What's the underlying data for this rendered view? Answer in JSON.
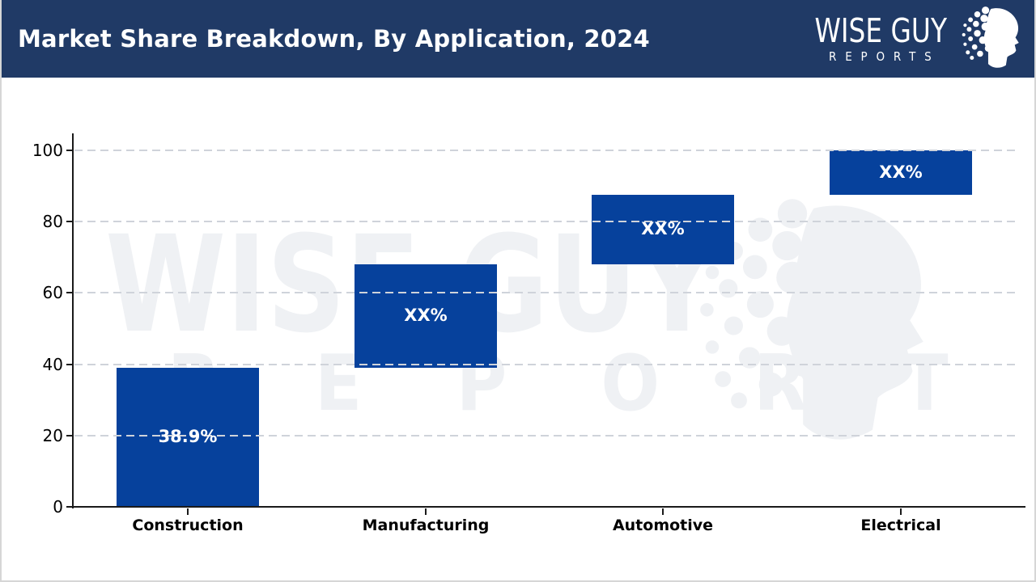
{
  "header": {
    "title": "Market Share Breakdown, By Application, 2024",
    "logo": {
      "name": "WISE GUY",
      "sub": "REPORTS",
      "head_icon": "dotted-face-profile"
    }
  },
  "watermark": {
    "big_text": "WISE GUY",
    "sub_text": "R E P O R T S",
    "head_icon": "dotted-face-profile"
  },
  "colors": {
    "header-bg": "#203a66",
    "bar-blue": "#06419c",
    "grid-gray": "#cfd3da",
    "axis-black": "#1a1a1a",
    "watermark-gray": "#eff1f4",
    "page-bg": "#ffffff",
    "title-white": "#ffffff"
  },
  "chart_data": {
    "type": "bar",
    "variant": "waterfall",
    "title": "Market Share Breakdown, By Application, 2024",
    "categories": [
      "Construction",
      "Manufacturing",
      "Automotive",
      "Electrical"
    ],
    "segments": [
      {
        "category": "Construction",
        "start": 0,
        "end": 38.9,
        "label": "38.9%"
      },
      {
        "category": "Manufacturing",
        "start": 38.9,
        "end": 68,
        "label": "XX%"
      },
      {
        "category": "Automotive",
        "start": 68,
        "end": 87.5,
        "label": "XX%"
      },
      {
        "category": "Electrical",
        "start": 87.5,
        "end": 100,
        "label": "XX%"
      }
    ],
    "xlabel": "",
    "ylabel": "",
    "yticks": [
      0,
      20,
      40,
      60,
      80,
      100
    ],
    "ylim": [
      0,
      104.8
    ],
    "grid": {
      "horizontal": true,
      "style": "dashed",
      "above_bars": true
    },
    "legend": null,
    "bar_color": "#06419c",
    "value_label_color": "#ffffff"
  }
}
